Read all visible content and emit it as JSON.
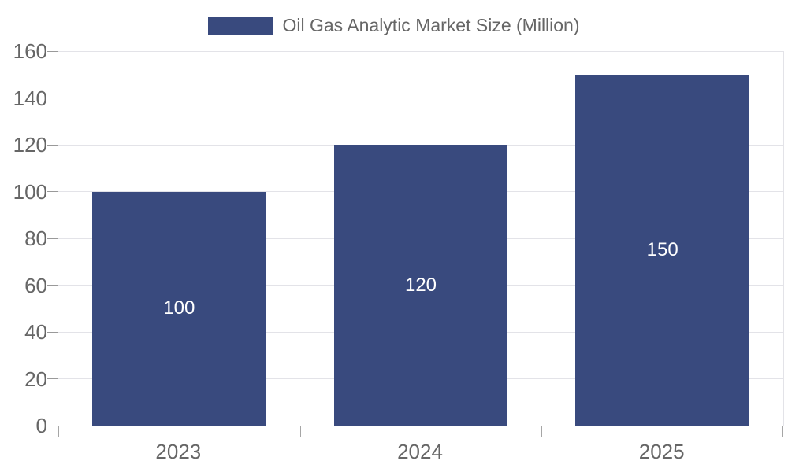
{
  "chart_data": {
    "type": "bar",
    "title": "Oil Gas Analytic Market Size (Million)",
    "legend_entries": [
      "Oil Gas Analytic Market Size (Million)"
    ],
    "legend_position": "top-center",
    "categories": [
      "2023",
      "2024",
      "2025"
    ],
    "values": [
      100,
      120,
      150
    ],
    "bar_value_labels": [
      "100",
      "120",
      "150"
    ],
    "xlabel": "",
    "ylabel": "",
    "ylim": [
      0,
      160
    ],
    "ytick_step": 20,
    "y_tick_labels": [
      "0",
      "20",
      "40",
      "60",
      "80",
      "100",
      "120",
      "140",
      "160"
    ],
    "grid": true,
    "bar_width_ratio": 0.72,
    "colors": {
      "bar": "#394A7E",
      "bar_value_label": "#ffffff",
      "axis_text": "#666666",
      "legend_text": "#666666",
      "axis_line": "#999999",
      "tick_line": "#a6a6a6",
      "grid_line": "#e3e3e8",
      "background": "#ffffff"
    }
  }
}
